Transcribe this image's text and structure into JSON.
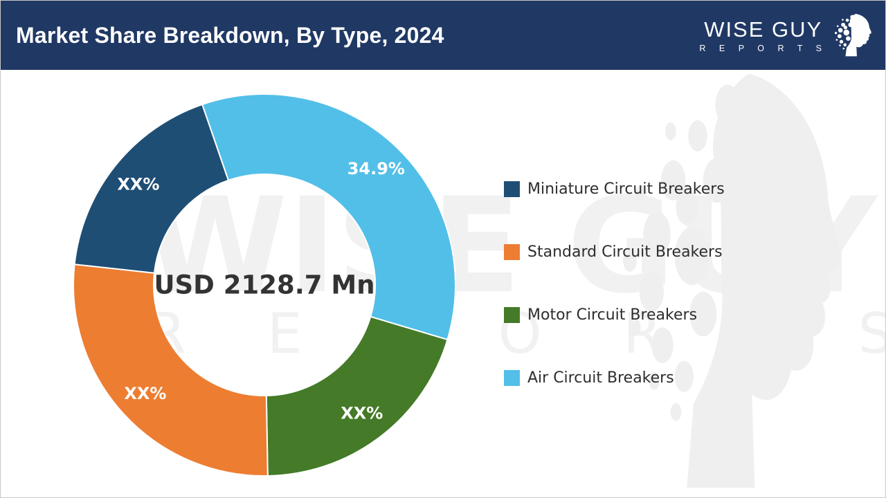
{
  "header": {
    "title": "Market Share Breakdown, By Type, 2024",
    "bg_color": "#203864",
    "logo_line1": "WISE GUY",
    "logo_line2": "R E P O R T S"
  },
  "watermark": {
    "line1": "WISE GUY",
    "line2": "R E P O R T S"
  },
  "chart_data": {
    "type": "pie",
    "subtype": "donut",
    "title": "Market Share Breakdown, By Type, 2024",
    "center_label": "USD 2128.7 Mn",
    "start_angle_deg": 109,
    "direction": "counterclockwise",
    "outer_radius_px": 276,
    "inner_radius_px": 160,
    "label_radius_px": 233,
    "legend_position": "right",
    "segments": [
      {
        "name": "Miniature Circuit Breakers",
        "value_pct": 18.0,
        "display_label": "XX%",
        "color": "#1f4e74"
      },
      {
        "name": "Standard Circuit Breakers",
        "value_pct": 27.0,
        "display_label": "XX%",
        "color": "#ed7d31"
      },
      {
        "name": "Motor Circuit Breakers",
        "value_pct": 20.1,
        "display_label": "XX%",
        "color": "#447a28"
      },
      {
        "name": "Air Circuit Breakers",
        "value_pct": 34.9,
        "display_label": "34.9%",
        "color": "#52bfe8"
      }
    ]
  }
}
